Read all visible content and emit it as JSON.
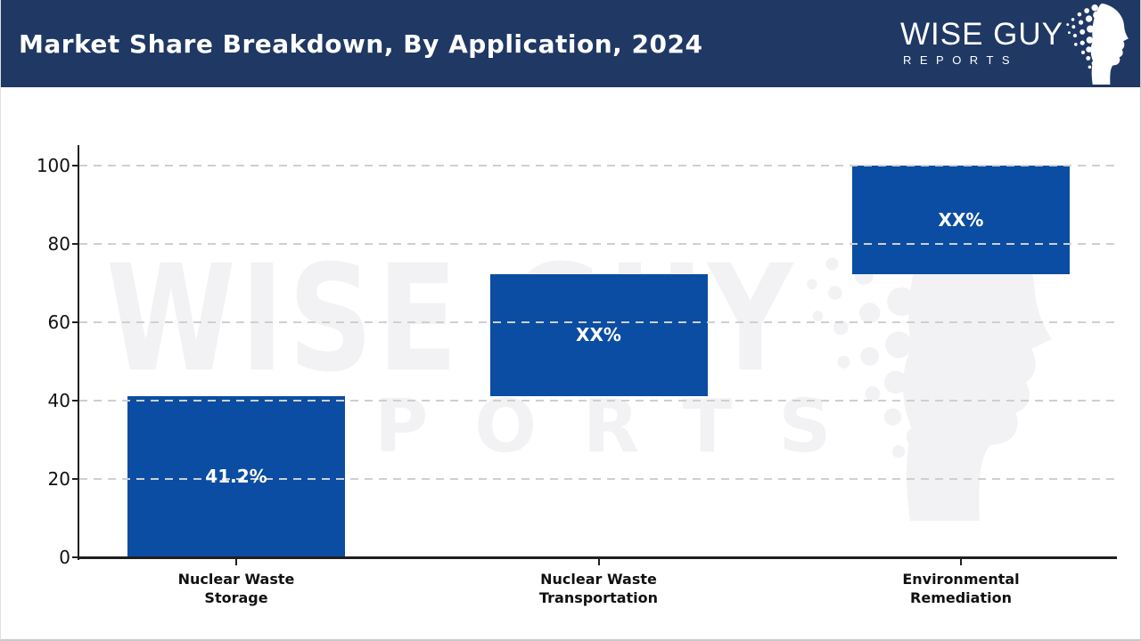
{
  "header": {
    "title": "Market Share Breakdown, By Application, 2024",
    "logo": {
      "line1": "WISE GUY",
      "line2": "REPORTS"
    }
  },
  "watermark": {
    "line1": "WISE GUY",
    "line2": "REPORTS"
  },
  "colors": {
    "header_bg": "#1f3864",
    "bar": "#0b4da2",
    "grid": "#cfcfcf",
    "axis": "#1f1f1f",
    "bar_label_text": "#ffffff",
    "watermark": "#f2f2f4"
  },
  "chart_data": {
    "type": "bar",
    "subtype": "floating-waterfall",
    "title": "Market Share Breakdown, By Application, 2024",
    "categories": [
      "Nuclear Waste\nStorage",
      "Nuclear Waste\nTransportation",
      "Environmental\nRemediation"
    ],
    "series": [
      {
        "name": "Market share (%)",
        "segments": [
          {
            "category": "Nuclear Waste Storage",
            "start": 0,
            "end": 41.2,
            "label": "41.2%"
          },
          {
            "category": "Nuclear Waste Transportation",
            "start": 41.2,
            "end": 72.2,
            "label": "XX%"
          },
          {
            "category": "Environmental Remediation",
            "start": 72.2,
            "end": 100,
            "label": "XX%"
          }
        ]
      }
    ],
    "xlabel": "",
    "ylabel": "",
    "yticks": [
      0,
      20,
      40,
      60,
      80,
      100
    ],
    "ylim": [
      0,
      105
    ],
    "grid": "horizontal-dashed",
    "legend": "none",
    "bar_color": "#0b4da2",
    "label_color": "#ffffff"
  }
}
